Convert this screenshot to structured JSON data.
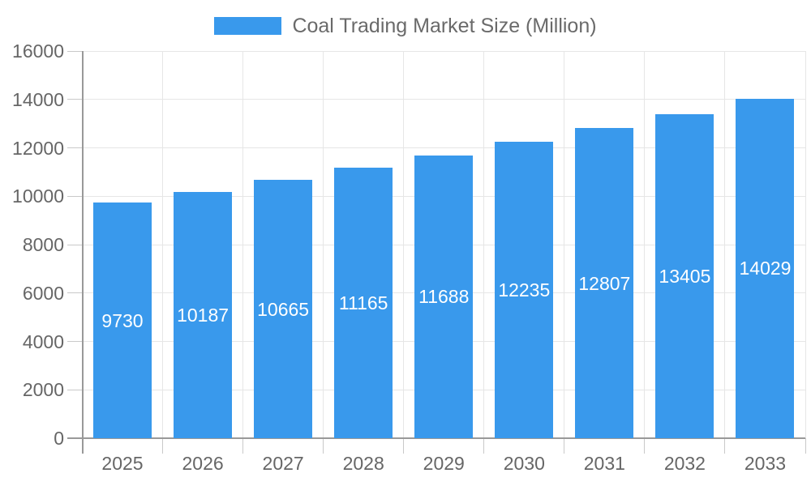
{
  "chart_data": {
    "type": "bar",
    "title": "Coal Trading Market Size (Million)",
    "categories": [
      "2025",
      "2026",
      "2027",
      "2028",
      "2029",
      "2030",
      "2031",
      "2032",
      "2033"
    ],
    "values": [
      9730,
      10187,
      10665,
      11165,
      11688,
      12235,
      12807,
      13405,
      14029
    ],
    "series": [
      {
        "name": "Coal Trading Market Size (Million)",
        "values": [
          9730,
          10187,
          10665,
          11165,
          11688,
          12235,
          12807,
          13405,
          14029
        ]
      }
    ],
    "xlabel": "",
    "ylabel": "",
    "ylim": [
      0,
      16000
    ],
    "yticks": [
      0,
      2000,
      4000,
      6000,
      8000,
      10000,
      12000,
      14000,
      16000
    ],
    "grid": true,
    "legend_position": "top",
    "value_labels_inside_bars": true,
    "colors": {
      "bar": "#3999EC",
      "grid": "#E6E6E6",
      "axis": "#999999",
      "tick": "#C9C9C9",
      "axis_text": "#666666",
      "legend_text": "#6A6A6A",
      "value_label": "#FFFFFF",
      "background": "#FFFFFF"
    }
  }
}
